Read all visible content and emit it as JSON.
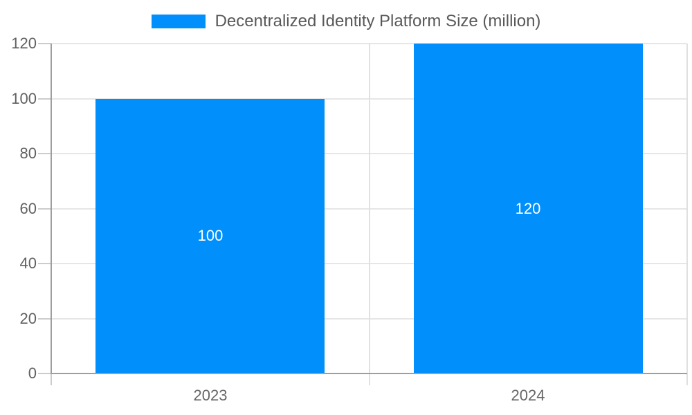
{
  "chart_data": {
    "type": "bar",
    "title": "Decentralized Identity Platform Size (million)",
    "categories": [
      "2023",
      "2024"
    ],
    "values": [
      100,
      120
    ],
    "bar_labels": [
      "100",
      "120"
    ],
    "xlabel": "",
    "ylabel": "",
    "ylim": [
      0,
      120
    ],
    "yticks": [
      0,
      20,
      40,
      60,
      80,
      100,
      120
    ],
    "grid": true,
    "legend_position": "top",
    "colors": {
      "bar": "#008ffb",
      "gridline": "#e6e6e6",
      "category_boundary": "#e0e0e0",
      "axis_line": "#9e9e9e",
      "tick_mark": "#cccccc",
      "axis_text": "#606060",
      "legend_text": "#595959",
      "bar_label_text": "#ffffff",
      "background": "#ffffff"
    }
  }
}
